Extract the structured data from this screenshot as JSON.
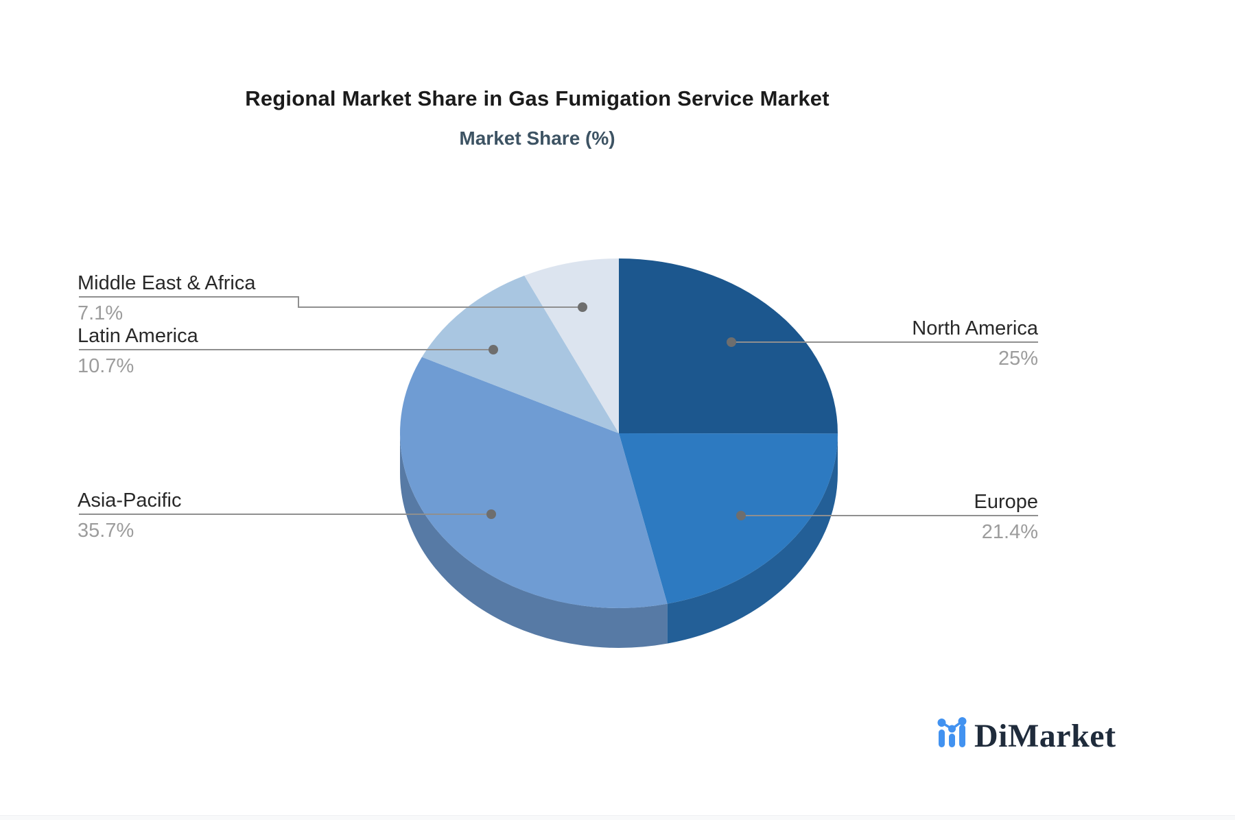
{
  "title": "Regional Market Share in Gas Fumigation Service Market",
  "subtitle": "Market Share (%)",
  "chart_data": {
    "type": "pie",
    "style": "3d",
    "title": "Regional Market Share in Gas Fumigation Service Market",
    "subtitle": "Market Share (%)",
    "unit": "percent",
    "start_angle_deg": 0,
    "direction": "clockwise",
    "legend_position": "callout-labels",
    "slices": [
      {
        "label": "North America",
        "value": 25,
        "display": "25%",
        "color": "#1c578e"
      },
      {
        "label": "Europe",
        "value": 21.4,
        "display": "21.4%",
        "color": "#2d7ac1"
      },
      {
        "label": "Asia-Pacific",
        "value": 35.7,
        "display": "35.7%",
        "color": "#6f9cd3"
      },
      {
        "label": "Latin America",
        "value": 10.7,
        "display": "10.7%",
        "color": "#a9c6e1"
      },
      {
        "label": "Middle East & Africa",
        "value": 7.1,
        "display": "7.1%",
        "color": "#dce4ef"
      }
    ],
    "leader_line_color": "#8f8f8f",
    "dot_color": "#6e6e6e",
    "label_color": "#282828",
    "percent_color": "#9c9c9c"
  },
  "logo": {
    "text": "DiMarket",
    "icon": "bar-line-chart-icon",
    "accent_color": "#4292f0",
    "text_color": "#1f2b3b"
  }
}
